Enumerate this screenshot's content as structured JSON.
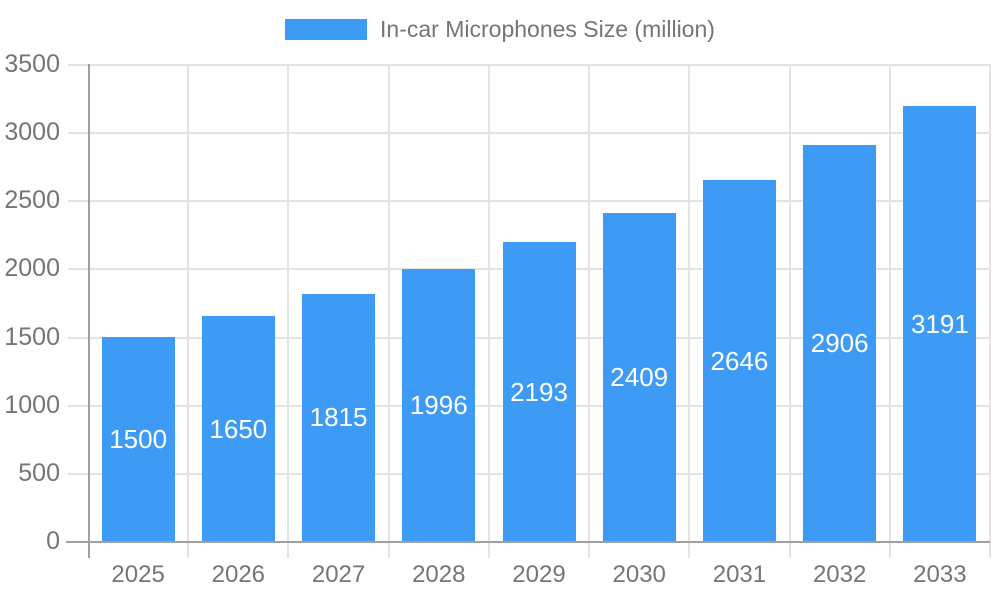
{
  "legend": {
    "label": "In-car Microphones Size (million)"
  },
  "chart_data": {
    "type": "bar",
    "title": "In-car Microphones Size (million)",
    "series_name": "In-car Microphones Size (million)",
    "categories": [
      "2025",
      "2026",
      "2027",
      "2028",
      "2029",
      "2030",
      "2031",
      "2032",
      "2033"
    ],
    "values": [
      1500,
      1650,
      1815,
      1996,
      2193,
      2409,
      2646,
      2906,
      3191
    ],
    "bar_labels": [
      "1500",
      "1650",
      "1815",
      "1996",
      "2193",
      "2409",
      "2646",
      "2906",
      "3191"
    ],
    "xlabel": "",
    "ylabel": "",
    "ylim": [
      0,
      3500
    ],
    "yticks": [
      0,
      500,
      1000,
      1500,
      2000,
      2500,
      3000,
      3500
    ],
    "grid": true,
    "legend_position": "top-center",
    "colors": {
      "bar": "#3E9BF5",
      "grid": "#E3E3E3",
      "axis": "#A0A0A0",
      "tick_text": "#757575",
      "bar_label_text": "#ffffff",
      "background": "#ffffff"
    }
  }
}
